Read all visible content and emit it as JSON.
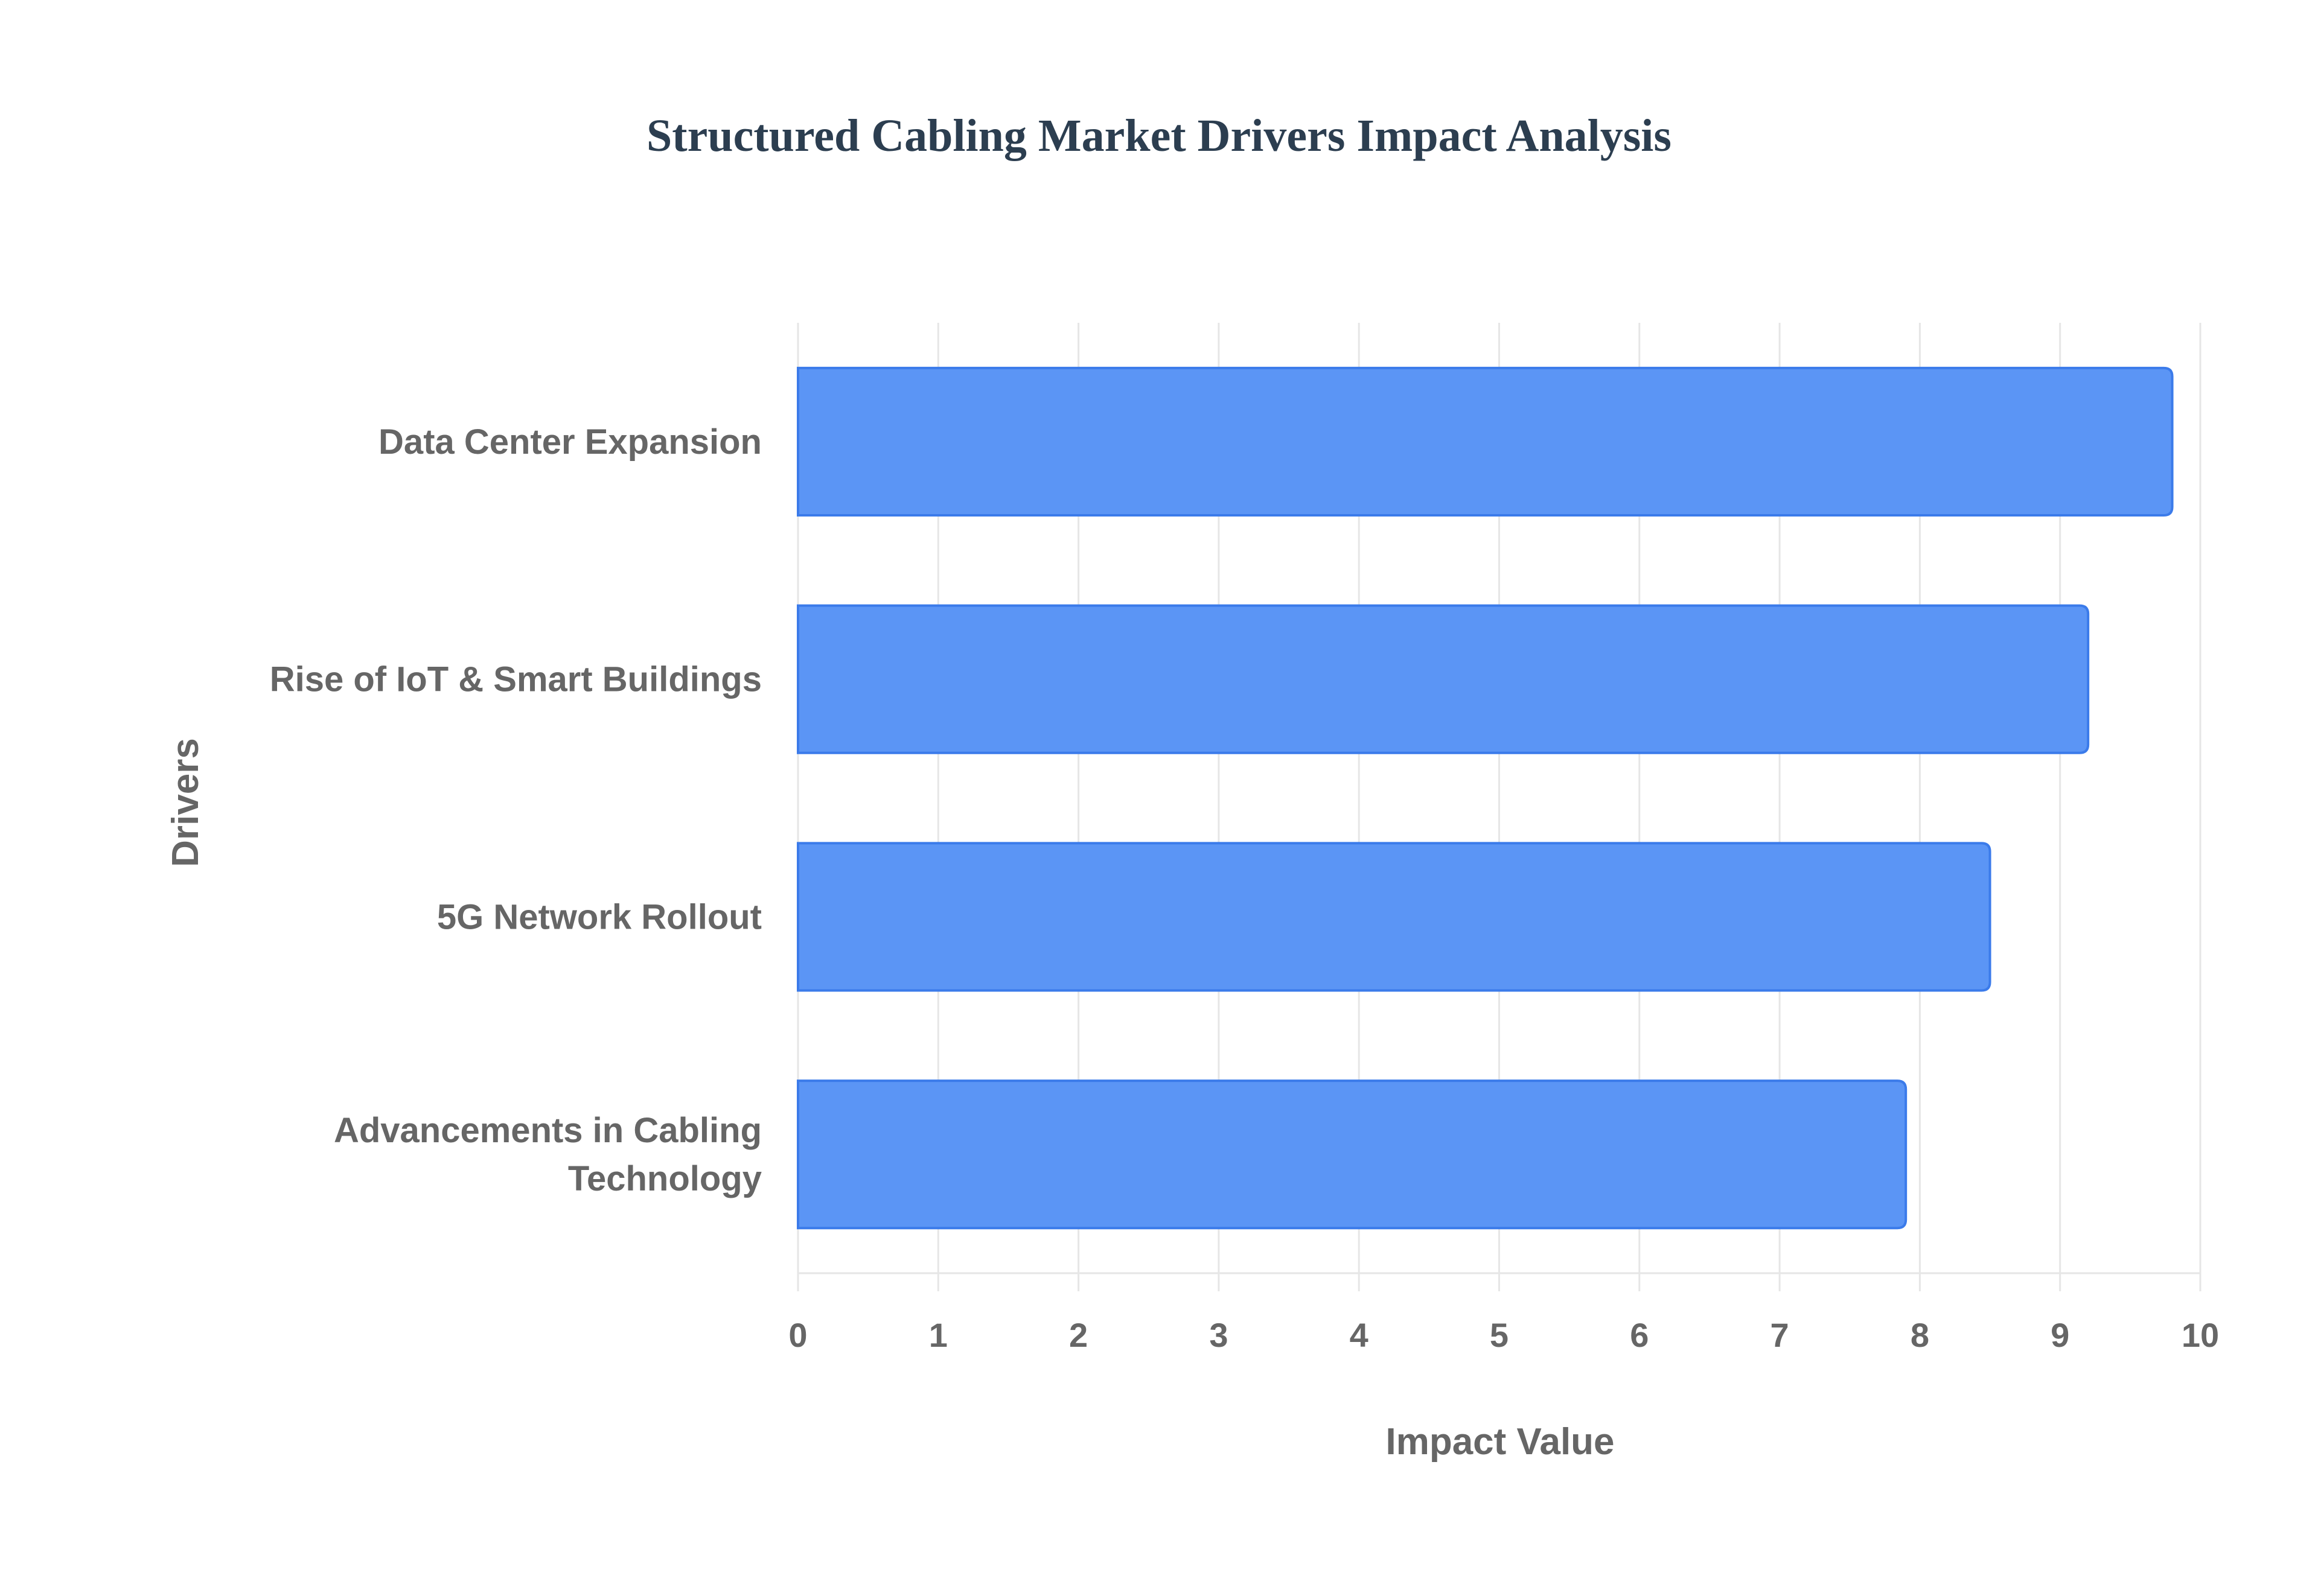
{
  "chart_data": {
    "type": "bar",
    "orientation": "horizontal",
    "title": "Structured Cabling Market Drivers Impact Analysis",
    "xlabel": "Impact Value",
    "ylabel": "Drivers",
    "categories": [
      "Data Center Expansion",
      "Rise of IoT & Smart Buildings",
      "5G Network Rollout",
      "Advancements in Cabling Technology"
    ],
    "category_lines": [
      [
        "Data Center Expansion"
      ],
      [
        "Rise of IoT & Smart Buildings"
      ],
      [
        "5G Network Rollout"
      ],
      [
        "Advancements in Cabling",
        "Technology"
      ]
    ],
    "values": [
      9.8,
      9.2,
      8.5,
      7.9
    ],
    "xlim": [
      0,
      10
    ],
    "xticks": [
      0,
      1,
      2,
      3,
      4,
      5,
      6,
      7,
      8,
      9,
      10
    ],
    "grid": true,
    "legend": "none",
    "colors": {
      "bar_fill": "#5b95f5",
      "bar_stroke": "#3b7bea",
      "title": "#2c3e50",
      "label": "#666666",
      "grid": "#e6e6e6"
    }
  }
}
